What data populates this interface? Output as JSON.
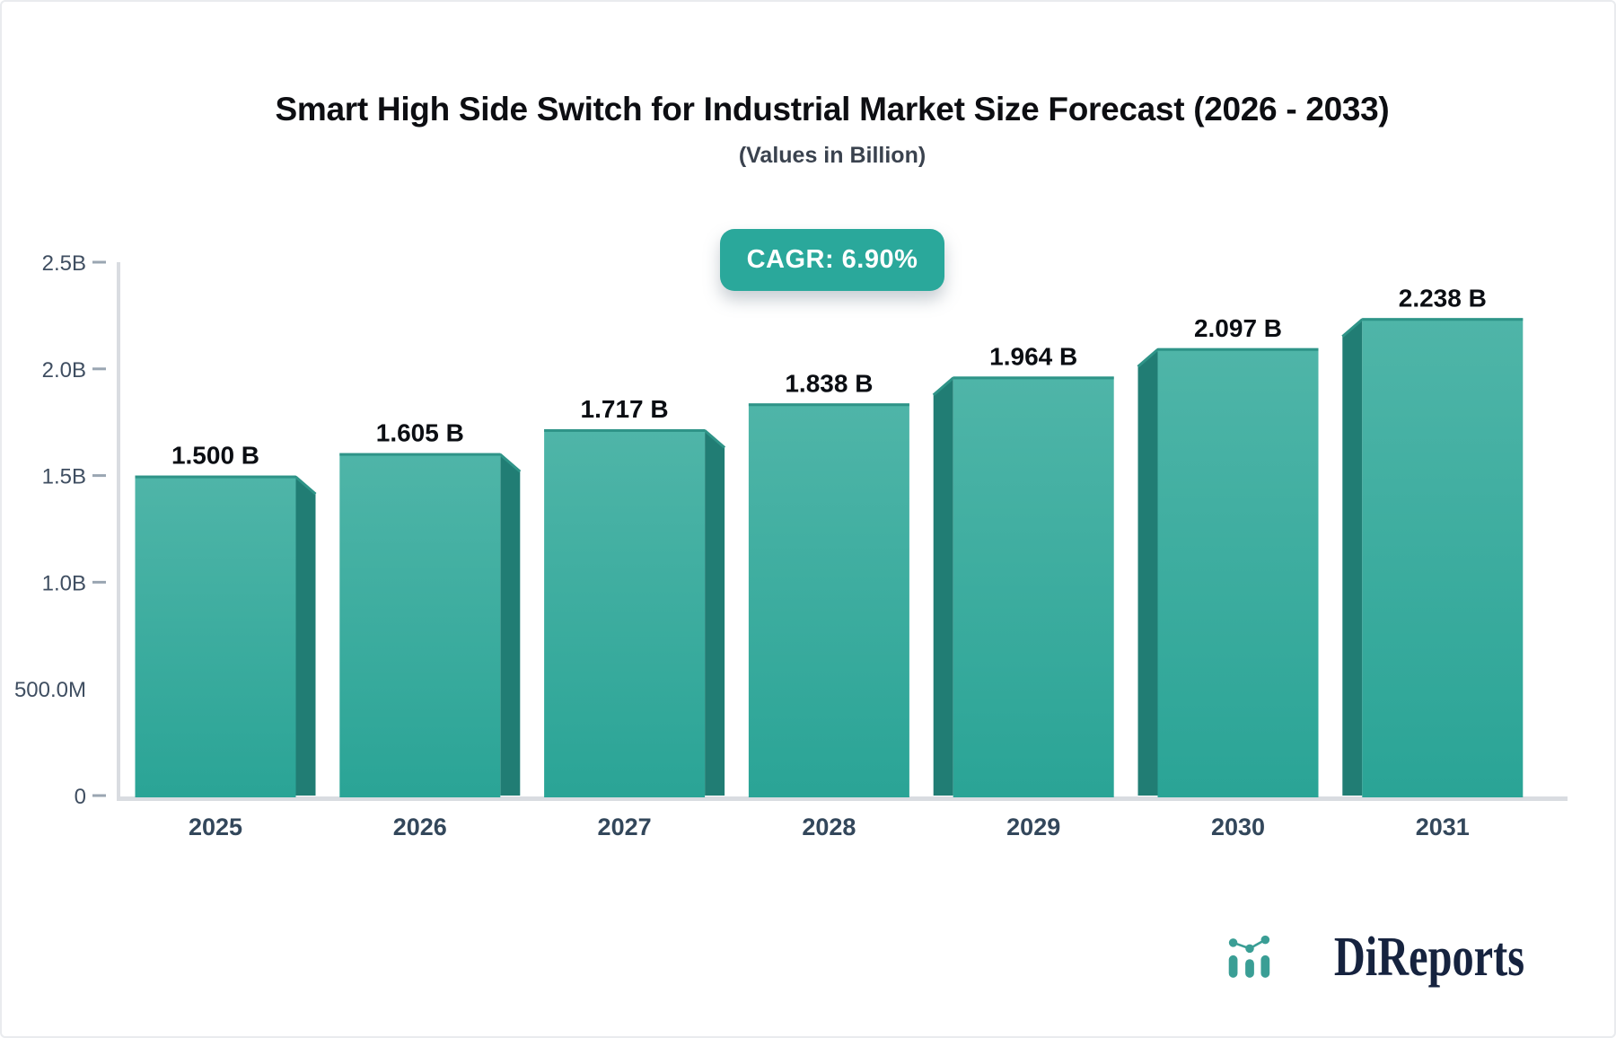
{
  "header": {
    "title": "Smart High Side Switch for Industrial Market Size Forecast (2026 - 2033)",
    "subtitle": "(Values in Billion)",
    "cagr_label": "CAGR: 6.90%"
  },
  "brand": {
    "name": "DiReports",
    "icon": "bar-chart-with-trend-dots-icon"
  },
  "colors": {
    "accent_teal": "#2aa89b",
    "bar_face_top": "#4fb5a8",
    "bar_face_bottom": "#2aa496",
    "bar_side": "#217d74",
    "bar_top_edge": "#2f9488",
    "axis_line": "#d9dce1",
    "tick_mark": "#9aa6b2",
    "y_label": "#3f4e61",
    "x_label": "#33475b",
    "value_label": "#0b0e13",
    "logo_navy": "#16233f",
    "logo_teal": "#3a9e95"
  },
  "chart_data": {
    "type": "bar",
    "title": "Smart High Side Switch for Industrial Market Size Forecast (2026 - 2033)",
    "subtitle": "(Values in Billion)",
    "annotation": "CAGR: 6.90%",
    "categories": [
      "2025",
      "2026",
      "2027",
      "2028",
      "2029",
      "2030",
      "2031"
    ],
    "values": [
      1.5,
      1.605,
      1.717,
      1.838,
      1.964,
      2.097,
      2.238
    ],
    "value_labels": [
      "1.500 B",
      "1.605 B",
      "1.717 B",
      "1.838 B",
      "1.964 B",
      "2.097 B",
      "2.238 B"
    ],
    "xlabel": "",
    "ylabel": "",
    "ylim": [
      0,
      2.5
    ],
    "y_ticks": [
      {
        "label": "2.5B",
        "value": 2.5,
        "has_tick": true
      },
      {
        "label": "2.0B",
        "value": 2.0,
        "has_tick": true
      },
      {
        "label": "1.5B",
        "value": 1.5,
        "has_tick": true
      },
      {
        "label": "1.0B",
        "value": 1.0,
        "has_tick": true
      },
      {
        "label": "500.0M",
        "value": 0.5,
        "has_tick": false
      },
      {
        "label": "0",
        "value": 0.0,
        "has_tick": true
      }
    ],
    "grid": false,
    "legend": false,
    "style_3d": true
  }
}
